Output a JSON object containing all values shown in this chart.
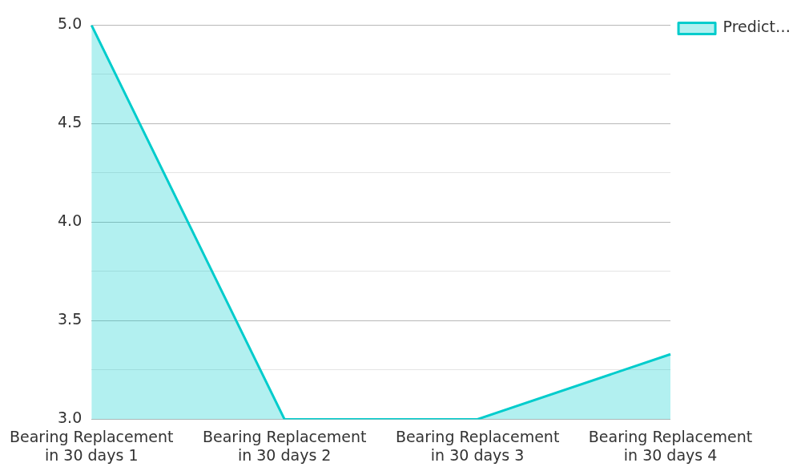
{
  "chart_data": {
    "type": "area",
    "categories": [
      "Bearing Replacement in 30 days 1",
      "Bearing Replacement in 30 days 2",
      "Bearing Replacement in 30 days 3",
      "Bearing Replacement in 30 days 4"
    ],
    "series": [
      {
        "name": "Predict…",
        "color": "#00cccc",
        "values": [
          5.0,
          3.0,
          3.0,
          3.33
        ]
      }
    ],
    "ylim": [
      3.0,
      5.0
    ],
    "yticks": [
      {
        "value": 3.0,
        "label": "3.0"
      },
      {
        "value": 3.25,
        "label": null
      },
      {
        "value": 3.5,
        "label": "3.5"
      },
      {
        "value": 3.75,
        "label": null
      },
      {
        "value": 4.0,
        "label": "4.0"
      },
      {
        "value": 4.25,
        "label": null
      },
      {
        "value": 4.5,
        "label": "4.5"
      },
      {
        "value": 4.75,
        "label": null
      },
      {
        "value": 5.0,
        "label": "5.0"
      }
    ],
    "grid": "y",
    "legend": "top right"
  }
}
